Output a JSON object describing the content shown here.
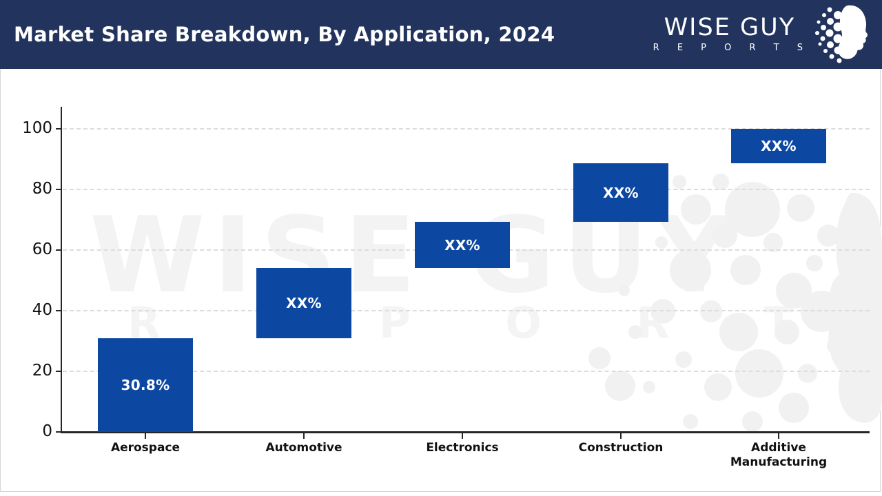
{
  "header": {
    "title": "Market Share Breakdown, By Application, 2024",
    "background_color": "#22345e",
    "logo": {
      "line1": "WISE GUY",
      "line2": "R E P O R T S",
      "face_icon": "dotted-head-profile"
    }
  },
  "watermark": {
    "line1": "WISE GUY",
    "line2": "R E P O R T S",
    "face_icon": "dotted-head-profile"
  },
  "chart_data": {
    "type": "bar",
    "subtype": "waterfall",
    "title": "Market Share Breakdown, By Application, 2024",
    "categories": [
      "Aerospace",
      "Automotive",
      "Electronics",
      "Construction",
      "Additive Manufacturing"
    ],
    "segments": [
      {
        "category": "Aerospace",
        "start": 0,
        "end": 30.8,
        "label": "30.8%"
      },
      {
        "category": "Automotive",
        "start": 30.8,
        "end": 54.0,
        "label": "XX%"
      },
      {
        "category": "Electronics",
        "start": 54.0,
        "end": 69.3,
        "label": "XX%"
      },
      {
        "category": "Construction",
        "start": 69.3,
        "end": 88.6,
        "label": "XX%"
      },
      {
        "category": "Additive Manufacturing",
        "start": 88.6,
        "end": 100.0,
        "label": "XX%"
      }
    ],
    "y_ticks": [
      0,
      20,
      40,
      60,
      80,
      100
    ],
    "ylim": [
      0,
      106
    ],
    "xlabel": "",
    "ylabel": "",
    "bar_color": "#0c47a1",
    "bar_label_color": "#ffffff",
    "grid": "horizontal-dashed",
    "grid_color": "#dcdcdc",
    "axis_color": "#262626",
    "legend": "none"
  }
}
